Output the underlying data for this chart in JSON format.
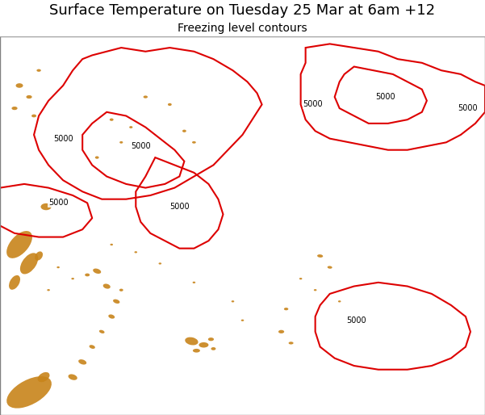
{
  "title": "Surface Temperature on Tuesday 25 Mar at 6am +12",
  "subtitle": "Freezing level contours",
  "title_fontsize": 13,
  "subtitle_fontsize": 10,
  "bg_color": "#dde3f0",
  "map_bg": "#ccd5ea",
  "ocean_color": "#d0d8ee",
  "grid_color": "#ffffff",
  "contour_color": "#dd0000",
  "contour_label": "5000",
  "land_color": "#c8a84b",
  "land_edge": "#b8952a",
  "header_bg": "#ffffff",
  "fig_width": 6.01,
  "fig_height": 5.14,
  "dpi": 100
}
